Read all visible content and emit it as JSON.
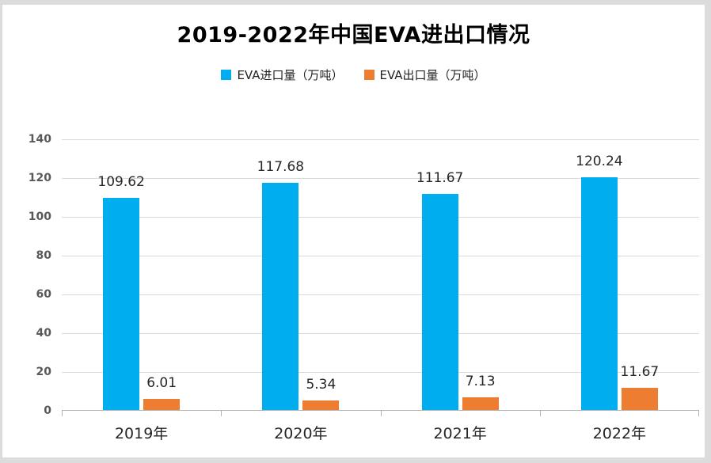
{
  "chart_data": {
    "type": "bar",
    "title": "2019-2022年中国EVA进出口情况",
    "categories": [
      "2019年",
      "2020年",
      "2021年",
      "2022年"
    ],
    "series": [
      {
        "name": "EVA进口量（万吨）",
        "color": "#00AEEF",
        "values": [
          109.62,
          117.68,
          111.67,
          120.24
        ]
      },
      {
        "name": "EVA出口量（万吨）",
        "color": "#ED7D31",
        "values": [
          6.01,
          5.34,
          7.13,
          11.67
        ]
      }
    ],
    "xlabel": "",
    "ylabel": "",
    "ylim": [
      0,
      140
    ],
    "ytick_step": 20,
    "grid": true,
    "legend_position": "top",
    "data_labels": true
  },
  "colors": {
    "import_bar": "#00AEEF",
    "export_bar": "#ED7D31",
    "gridline": "#d9d9d9",
    "axis_line": "#b3b3b3",
    "ytick_text": "#595959",
    "label_text": "#262626",
    "title_text": "#000000"
  }
}
